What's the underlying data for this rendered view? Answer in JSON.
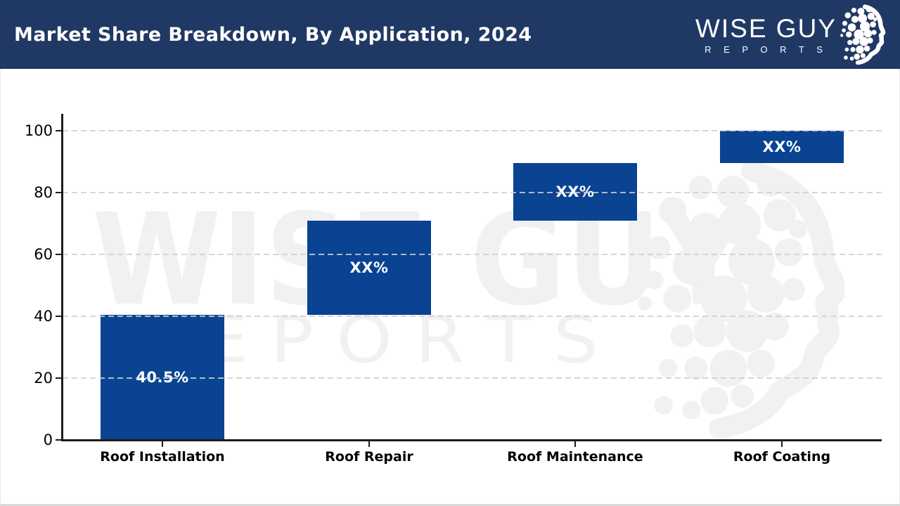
{
  "header": {
    "title": "Market Share Breakdown, By Application, 2024",
    "logo": {
      "line1": "WISE GUY",
      "line2": "R E P O R T S",
      "icon": "dotted-head-profile"
    }
  },
  "watermark": {
    "line1": "WISE GUY",
    "line2": "R E P O R T S",
    "icon": "dotted-head-profile"
  },
  "colors": {
    "header_bg": "#203864",
    "bar": "#0a4392",
    "bar_label": "#ffffff",
    "axis": "#1c1c1c",
    "grid": "#cfcfcf",
    "watermark": "#f1f1f1",
    "frame_border": "#d9d9d9"
  },
  "chart_data": {
    "type": "bar",
    "subtype": "waterfall-floating",
    "title": "Market Share Breakdown, By Application, 2024",
    "xlabel": "",
    "ylabel": "",
    "categories": [
      "Roof Installation",
      "Roof Repair",
      "Roof Maintenance",
      "Roof Coating"
    ],
    "segments": [
      {
        "category": "Roof Installation",
        "start": 0,
        "end": 40.5,
        "value": 40.5,
        "label": "40.5%"
      },
      {
        "category": "Roof Repair",
        "start": 40.5,
        "end": 71,
        "value": 30.5,
        "label": "XX%"
      },
      {
        "category": "Roof Maintenance",
        "start": 71,
        "end": 89.5,
        "value": 18.5,
        "label": "XX%"
      },
      {
        "category": "Roof Coating",
        "start": 89.5,
        "end": 100,
        "value": 10.5,
        "label": "XX%"
      }
    ],
    "y_ticks": [
      0,
      20,
      40,
      60,
      80,
      100
    ],
    "ylim": [
      0,
      105
    ],
    "grid": "dashed-horizontal-over-bars",
    "legend": "none"
  }
}
